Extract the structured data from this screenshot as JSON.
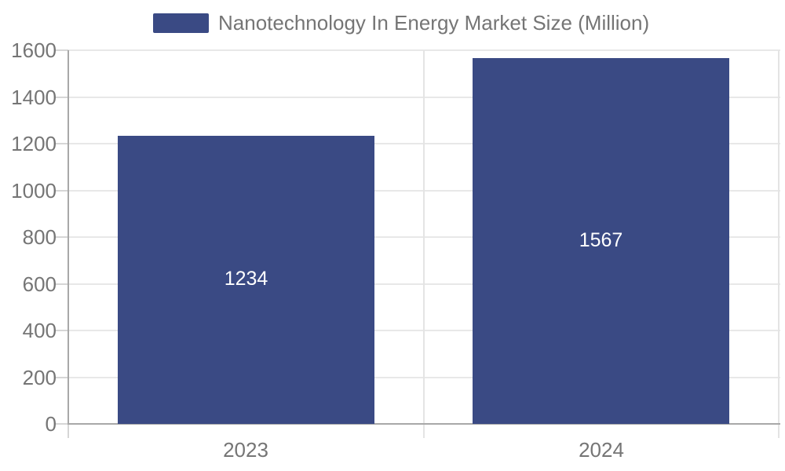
{
  "header": {
    "legend_label": "Nanotechnology In Energy Market Size (Million)"
  },
  "chart_data": {
    "type": "bar",
    "title": "Nanotechnology In Energy Market Size (Million)",
    "categories": [
      "2023",
      "2024"
    ],
    "values": [
      1234,
      1567
    ],
    "bar_value_labels": [
      "1234",
      "1567"
    ],
    "xlabel": "",
    "ylabel": "",
    "ylim": [
      0,
      1600
    ],
    "ytick_step": 200,
    "ytick_labels": [
      "0",
      "200",
      "400",
      "600",
      "800",
      "1000",
      "1200",
      "1400",
      "1600"
    ],
    "grid": true,
    "legend_position": "top-center"
  },
  "colors": {
    "bar": "#3A4A84",
    "bar_value_text": "#FFFFFF",
    "grid_line": "#E8E8E8",
    "split_line": "#E4E4E4",
    "axis_line": "#A8A8A8",
    "tick_line": "#D6D6D6",
    "label_text": "#757575",
    "background": "#FFFFFF"
  }
}
